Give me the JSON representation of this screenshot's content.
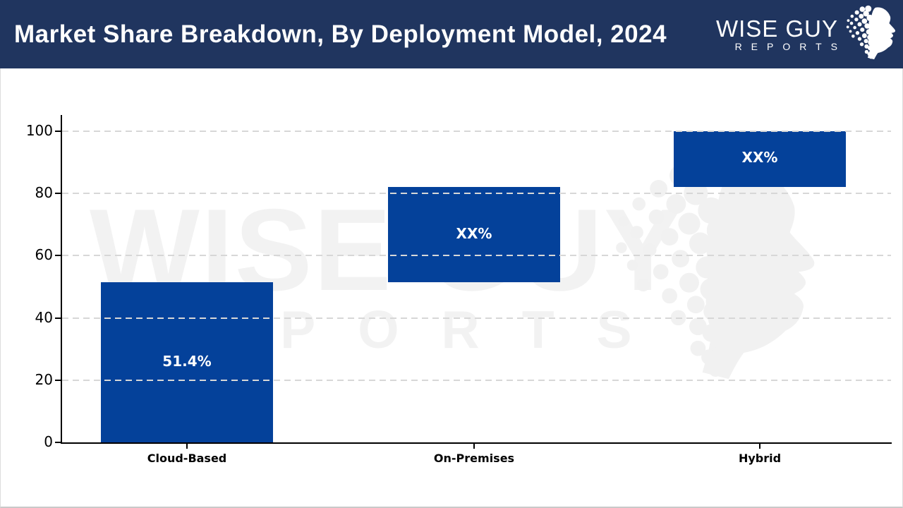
{
  "header": {
    "title": "Market Share Breakdown, By Deployment Model, 2024",
    "bg_color": "#20355f",
    "logo": {
      "line1": "WISE GUY",
      "line2": "REPORTS"
    }
  },
  "watermark": {
    "line1": "WISE GUY",
    "line2": "REPORTS"
  },
  "chart_data": {
    "type": "bar",
    "subtype": "floating-stacked-segments",
    "title": "Market Share Breakdown, By Deployment Model, 2024",
    "categories": [
      "Cloud-Based",
      "On-Premises",
      "Hybrid"
    ],
    "series": [
      {
        "category": "Cloud-Based",
        "start": 0,
        "end": 51.4,
        "label": "51.4%"
      },
      {
        "category": "On-Premises",
        "start": 51.4,
        "end": 82.1,
        "label": "XX%"
      },
      {
        "category": "Hybrid",
        "start": 82.1,
        "end": 100,
        "label": "XX%"
      }
    ],
    "xlabel": "",
    "ylabel": "",
    "yticks": [
      0,
      20,
      40,
      60,
      80,
      100
    ],
    "ylim": [
      0,
      105
    ],
    "grid": "horizontal-dashed",
    "legend": "none",
    "bar_color": "#04419a",
    "bar_label_color": "#ffffff",
    "gridline_color": "#d7d7d7",
    "axis_color": "#000000"
  }
}
